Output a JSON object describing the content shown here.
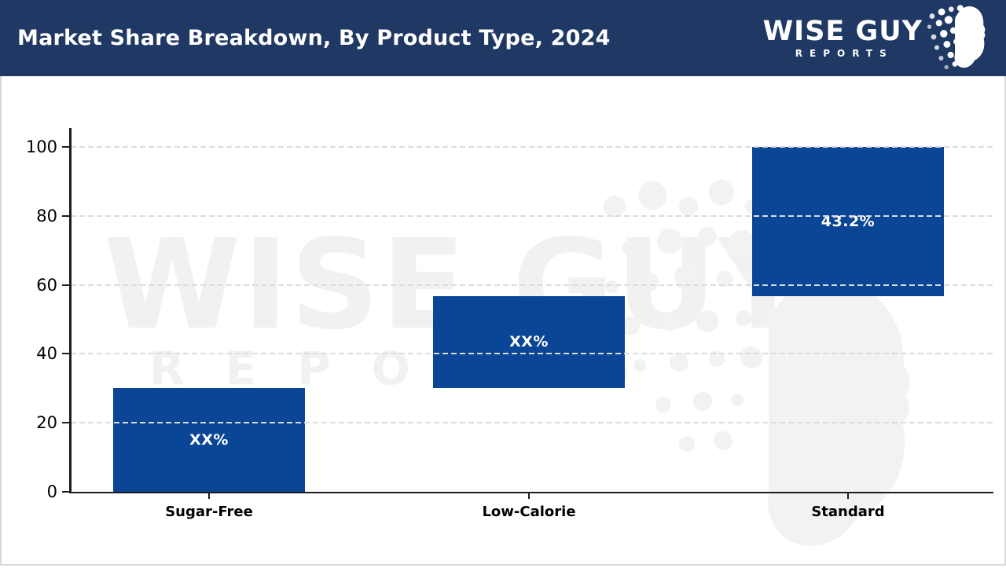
{
  "header": {
    "title": "Market Share Breakdown, By Product Type, 2024",
    "logo": {
      "line1": "WISE GUY",
      "line2": "REPORTS"
    }
  },
  "watermark": {
    "line1": "WISE GUY",
    "line2": "REPORTS"
  },
  "chart_data": {
    "type": "bar",
    "subtype": "waterfall",
    "title": "Market Share Breakdown, By Product Type, 2024",
    "categories": [
      "Sugar-Free",
      "Low-Calorie",
      "Standard"
    ],
    "segments": [
      {
        "category": "Sugar-Free",
        "start": 0,
        "end": 30,
        "value": 30,
        "label": "XX%"
      },
      {
        "category": "Low-Calorie",
        "start": 30,
        "end": 56.8,
        "value": 26.8,
        "label": "XX%"
      },
      {
        "category": "Standard",
        "start": 56.8,
        "end": 100,
        "value": 43.2,
        "label": "43.2%"
      }
    ],
    "ylim": [
      0,
      100
    ],
    "yticks": [
      0,
      20,
      40,
      60,
      80,
      100
    ],
    "grid": {
      "axis": "y",
      "style": "dashed",
      "color": "#dcdcdc",
      "drawn_over_bars": true
    },
    "legend": "none",
    "bar_color": "#0a4596",
    "bar_label_color": "#ffffff",
    "axis_color": "#1c1c1c",
    "tick_label_color": "#000000",
    "header_background": "#203864",
    "background": "#ffffff"
  }
}
